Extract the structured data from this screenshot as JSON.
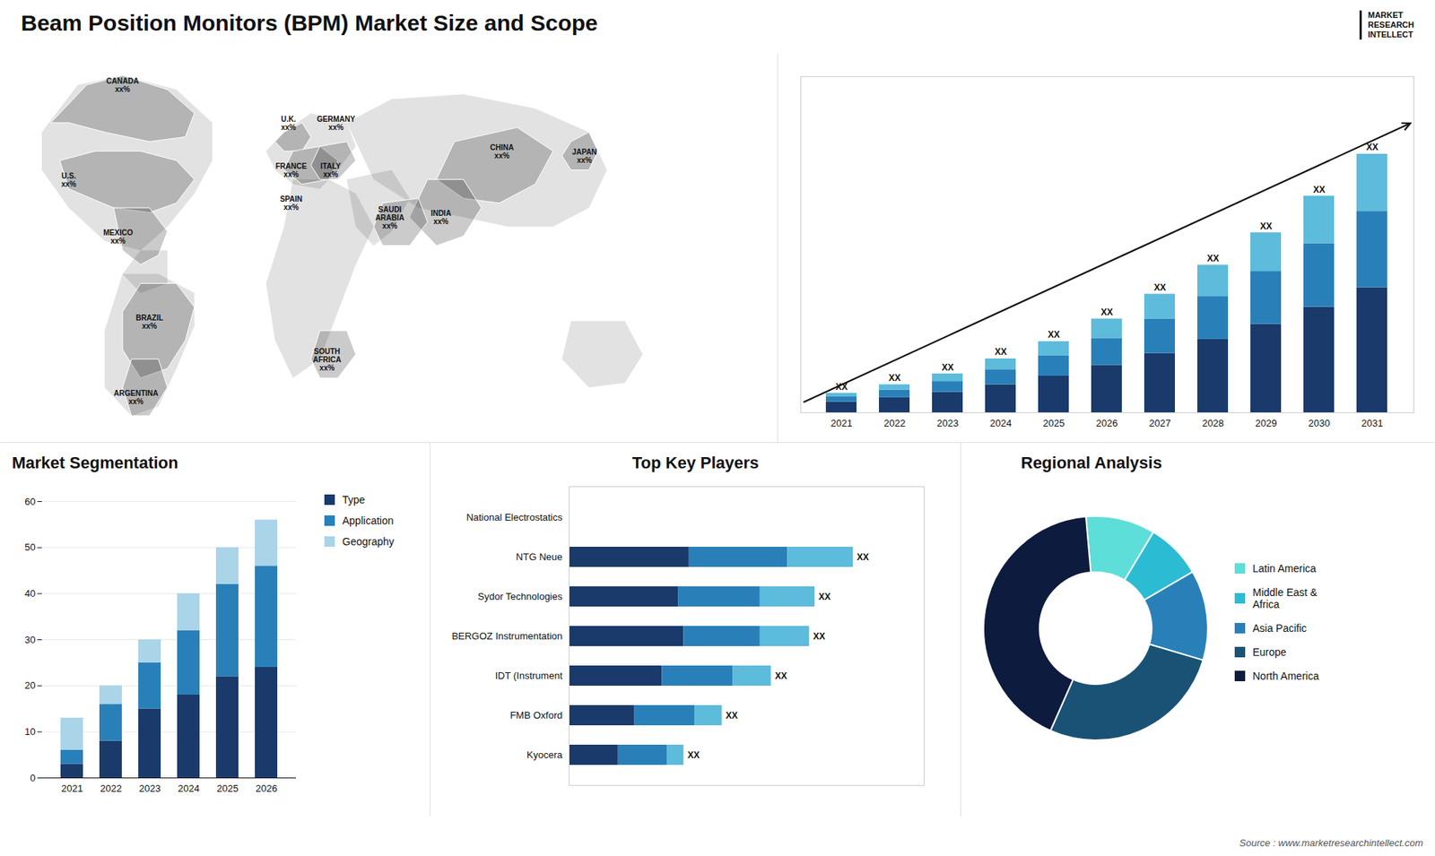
{
  "title": "Beam Position Monitors (BPM) Market Size and Scope",
  "logo": [
    "MARKET",
    "RESEARCH",
    "INTELLECT"
  ],
  "source": "Source : www.marketresearchintellect.com",
  "chart_data": [
    {
      "type": "map",
      "annotations": [
        "CANADA\nxx%",
        "U.S.\nxx%",
        "MEXICO\nxx%",
        "BRAZIL\nxx%",
        "ARGENTINA\nxx%",
        "U.K.\nxx%",
        "FRANCE\nxx%",
        "SPAIN\nxx%",
        "GERMANY\nxx%",
        "ITALY\nxx%",
        "SOUTH\nAFRICA\nxx%",
        "SAUDI\nARABIA\nxx%",
        "CHINA\nxx%",
        "INDIA\nxx%",
        "JAPAN\nxx%"
      ]
    },
    {
      "type": "bar",
      "stacked": true,
      "categories": [
        "2021",
        "2022",
        "2023",
        "2024",
        "2025",
        "2026",
        "2027",
        "2028",
        "2029",
        "2030",
        "2031"
      ],
      "series": [
        {
          "color": "#1a3a6b",
          "values": [
            1.0,
            1.4,
            1.9,
            2.6,
            3.4,
            4.4,
            5.5,
            6.8,
            8.2,
            9.8,
            11.6
          ]
        },
        {
          "color": "#2980b9",
          "values": [
            0.5,
            0.7,
            1.0,
            1.4,
            1.9,
            2.5,
            3.2,
            4.0,
            4.9,
            5.9,
            7.1
          ]
        },
        {
          "color": "#5dbbdb",
          "values": [
            0.3,
            0.5,
            0.7,
            1.0,
            1.3,
            1.8,
            2.3,
            2.9,
            3.6,
            4.4,
            5.3
          ]
        }
      ],
      "value_labels": [
        "XX",
        "XX",
        "XX",
        "XX",
        "XX",
        "XX",
        "XX",
        "XX",
        "XX",
        "XX",
        "XX"
      ],
      "ylim": [
        0,
        31.2
      ],
      "tick_labels": "x"
    },
    {
      "type": "bar",
      "title": "Market Segmentation",
      "stacked": true,
      "categories": [
        "2021",
        "2022",
        "2023",
        "2024",
        "2025",
        "2026"
      ],
      "series": [
        {
          "name": "Type",
          "color": "#1a3a6b",
          "values": [
            3,
            8,
            15,
            18,
            22,
            24
          ]
        },
        {
          "name": "Application",
          "color": "#2980b9",
          "values": [
            3,
            8,
            10,
            14,
            20,
            22
          ]
        },
        {
          "name": "Geography",
          "color": "#aad4e8",
          "values": [
            7,
            4,
            5,
            8,
            8,
            10
          ]
        }
      ],
      "ylim": [
        0,
        60
      ],
      "yticks": [
        0,
        10,
        20,
        30,
        40,
        50,
        60
      ],
      "grid": true,
      "legend": "right"
    },
    {
      "type": "bar",
      "title": "Top Key Players",
      "orientation": "horizontal",
      "stacked": true,
      "categories": [
        "National Electrostatics",
        "NTG Neue",
        "Sydor Technologies",
        "BERGOZ Instrumentation",
        "IDT (Instrument",
        "FMB Oxford",
        "Kyocera"
      ],
      "series": [
        {
          "color": "#1a3a6b",
          "values": [
            0,
            2.2,
            2.0,
            2.1,
            1.7,
            1.2,
            0.9
          ]
        },
        {
          "color": "#2980b9",
          "values": [
            0,
            1.8,
            1.5,
            1.4,
            1.3,
            1.1,
            0.9
          ]
        },
        {
          "color": "#5dbbdb",
          "values": [
            0,
            1.2,
            1.0,
            0.9,
            0.7,
            0.5,
            0.3
          ]
        }
      ],
      "value_labels": [
        null,
        "XX",
        "XX",
        "XX",
        "XX",
        "XX",
        "XX"
      ],
      "xlim": [
        0,
        6.5
      ],
      "tick_labels": "y"
    },
    {
      "type": "donut",
      "title": "Regional Analysis",
      "categories": [
        "Latin America",
        "Middle East &\nAfrica",
        "Asia Pacific",
        "Europe",
        "North America"
      ],
      "values": [
        10,
        8,
        13,
        27,
        42
      ],
      "colors": [
        "#5dded8",
        "#2bbcd4",
        "#2980b9",
        "#1a5276",
        "#0d1b3e"
      ],
      "legend": "right"
    }
  ]
}
